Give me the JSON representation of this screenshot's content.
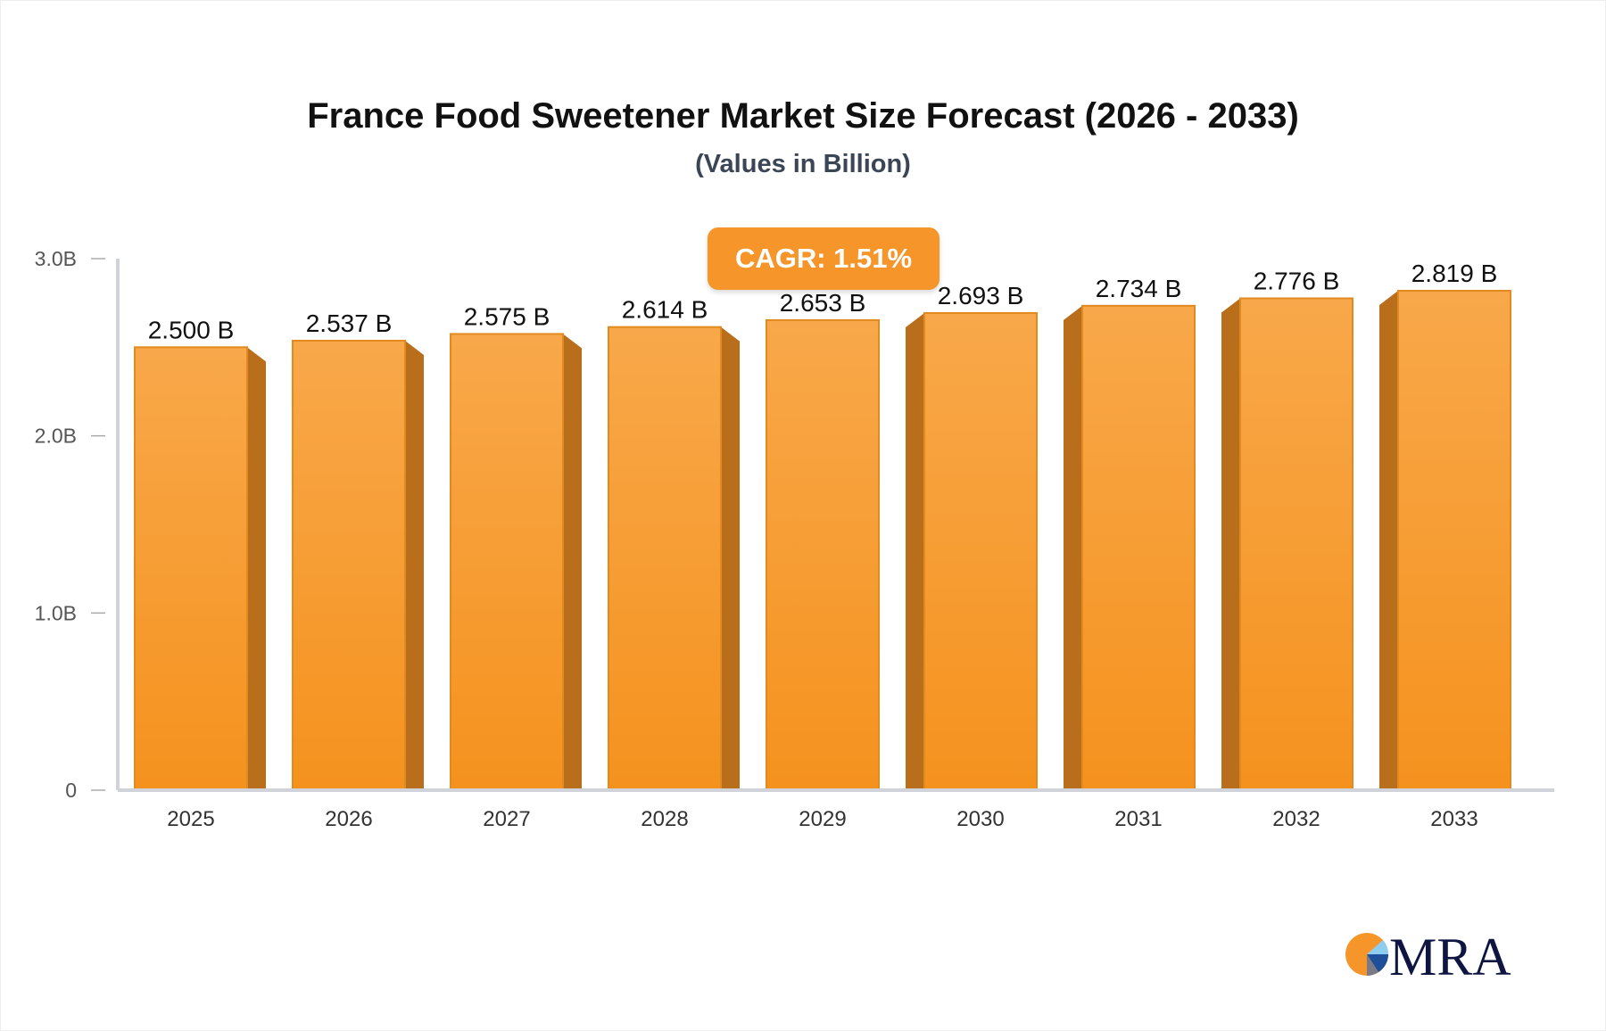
{
  "chart_data": {
    "type": "bar",
    "title": "France Food Sweetener Market Size Forecast (2026 - 2033)",
    "subtitle": "(Values in Billion)",
    "categories": [
      "2025",
      "2026",
      "2027",
      "2028",
      "2029",
      "2030",
      "2031",
      "2032",
      "2033"
    ],
    "values": [
      2.5,
      2.537,
      2.575,
      2.614,
      2.653,
      2.693,
      2.734,
      2.776,
      2.819
    ],
    "value_labels": [
      "2.500 B",
      "2.537 B",
      "2.575 B",
      "2.614 B",
      "2.653 B",
      "2.693 B",
      "2.734 B",
      "2.776 B",
      "2.819 B"
    ],
    "ylim": [
      0,
      3.0
    ],
    "yticks": [
      0,
      1.0,
      2.0,
      3.0
    ],
    "ytick_labels": [
      "0",
      "1.0B",
      "2.0B",
      "3.0B"
    ],
    "xlabel": "",
    "ylabel": "",
    "grid": false,
    "annotation": "CAGR: 1.51%",
    "colors": {
      "bar_top": "#f8a84a",
      "bar_bottom": "#f5921e",
      "bar_side": "#b86e1b",
      "bar_edge": "#e08a20",
      "axis": "#d0d3d9"
    }
  },
  "logo": {
    "text": "MRA"
  }
}
